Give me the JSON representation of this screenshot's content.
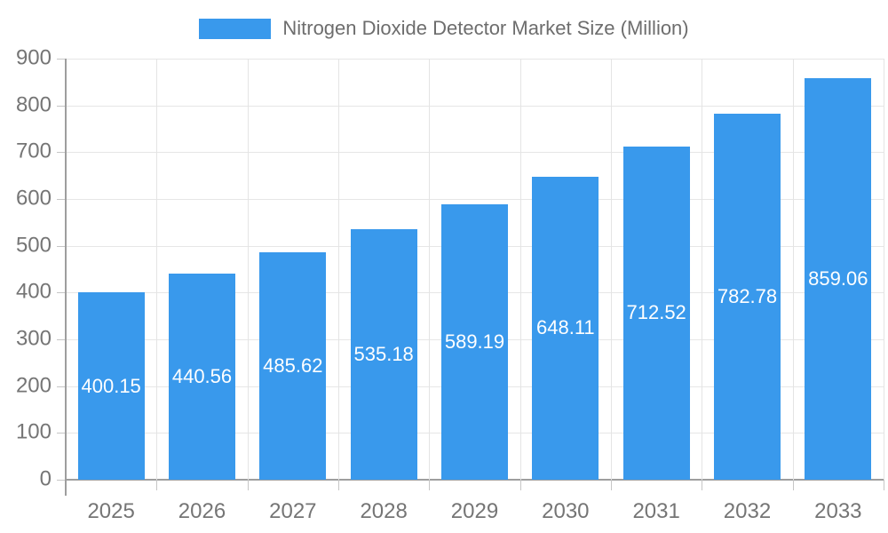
{
  "legend": {
    "label": "Nitrogen Dioxide Detector Market Size (Million)"
  },
  "chart_data": {
    "type": "bar",
    "title": "Nitrogen Dioxide Detector Market Size (Million)",
    "series_name": "Nitrogen Dioxide Detector Market Size (Million)",
    "categories": [
      "2025",
      "2026",
      "2027",
      "2028",
      "2029",
      "2030",
      "2031",
      "2032",
      "2033"
    ],
    "values": [
      400.15,
      440.56,
      485.62,
      535.18,
      589.19,
      648.11,
      712.52,
      782.78,
      859.06
    ],
    "xlabel": "",
    "ylabel": "",
    "ylim": [
      0,
      900
    ],
    "ytick_step": 100,
    "ytick_labels": [
      "0",
      "100",
      "200",
      "300",
      "400",
      "500",
      "600",
      "700",
      "800",
      "900"
    ],
    "grid": true,
    "legend_position": "top-center",
    "value_label_position": "inside-center",
    "value_label_decimals": 2
  },
  "colors": {
    "bar": "#3999ec",
    "grid": "#e6e6e6",
    "axis": "#9e9e9e",
    "tick": "#c6c6c6",
    "tick_label": "#757575",
    "legend_text": "#6d6d6d",
    "value_label": "#ffffff",
    "background": "#ffffff"
  }
}
